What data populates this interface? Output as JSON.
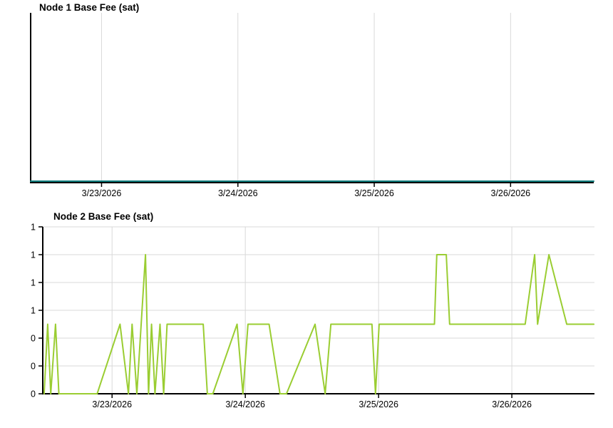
{
  "page": {
    "background_color": "#ffffff"
  },
  "chart_data": [
    {
      "type": "line",
      "title": "Node 1 Base Fee (sat)",
      "x_unit": "days relative to 3/23/2026 00:00",
      "xlim": [
        -0.52,
        3.61
      ],
      "ylim": [
        0,
        1
      ],
      "grid": "vertical-only",
      "legend": "none",
      "line_color": "#0e7d7d",
      "grid_color": "#d9d9d9",
      "axis_color": "#000000",
      "x_ticks": [
        {
          "t": 0,
          "label": "3/23/2026"
        },
        {
          "t": 1,
          "label": "3/24/2026"
        },
        {
          "t": 2,
          "label": "3/25/2026"
        },
        {
          "t": 3,
          "label": "3/26/2026"
        }
      ],
      "y_ticks": [],
      "points": [
        [
          -0.52,
          0
        ],
        [
          3.61,
          0
        ]
      ]
    },
    {
      "type": "line",
      "title": "Node 2 Base Fee (sat)",
      "x_unit": "days relative to 3/23/2026 00:00",
      "xlim": [
        -0.52,
        3.62
      ],
      "ylim": [
        0,
        1.2
      ],
      "grid": "both",
      "legend": "none",
      "line_color": "#9acd32",
      "grid_color": "#d9d9d9",
      "axis_color": "#000000",
      "x_ticks": [
        {
          "t": 0,
          "label": "3/23/2026"
        },
        {
          "t": 1,
          "label": "3/24/2026"
        },
        {
          "t": 2,
          "label": "3/25/2026"
        },
        {
          "t": 3,
          "label": "3/26/2026"
        }
      ],
      "y_ticks": [
        {
          "v": 1.2,
          "label": "1"
        },
        {
          "v": 1.0,
          "label": "1"
        },
        {
          "v": 0.8,
          "label": "1"
        },
        {
          "v": 0.6,
          "label": "1"
        },
        {
          "v": 0.4,
          "label": "0"
        },
        {
          "v": 0.2,
          "label": "0"
        },
        {
          "v": 0.0,
          "label": "0"
        }
      ],
      "points": [
        [
          -0.51,
          0
        ],
        [
          -0.483,
          0.5
        ],
        [
          -0.46,
          0
        ],
        [
          -0.424,
          0.5
        ],
        [
          -0.399,
          0
        ],
        [
          -0.112,
          0
        ],
        [
          0.06,
          0.5
        ],
        [
          0.123,
          0
        ],
        [
          0.15,
          0.5
        ],
        [
          0.186,
          0
        ],
        [
          0.251,
          1
        ],
        [
          0.274,
          0
        ],
        [
          0.296,
          0.5
        ],
        [
          0.322,
          0
        ],
        [
          0.36,
          0.5
        ],
        [
          0.387,
          0
        ],
        [
          0.413,
          0.5
        ],
        [
          0.684,
          0.5
        ],
        [
          0.715,
          0
        ],
        [
          0.756,
          0
        ],
        [
          0.938,
          0.5
        ],
        [
          0.982,
          0
        ],
        [
          1.02,
          0.5
        ],
        [
          1.178,
          0.5
        ],
        [
          1.26,
          0
        ],
        [
          1.309,
          0
        ],
        [
          1.523,
          0.5
        ],
        [
          1.599,
          0
        ],
        [
          1.642,
          0.5
        ],
        [
          1.95,
          0.5
        ],
        [
          1.977,
          0
        ],
        [
          2.004,
          0.5
        ],
        [
          2.419,
          0.5
        ],
        [
          2.437,
          1
        ],
        [
          2.508,
          1
        ],
        [
          2.533,
          0.5
        ],
        [
          3.1,
          0.5
        ],
        [
          3.171,
          1
        ],
        [
          3.193,
          0.5
        ],
        [
          3.278,
          1
        ],
        [
          3.412,
          0.5
        ],
        [
          3.615,
          0.5
        ]
      ]
    }
  ]
}
